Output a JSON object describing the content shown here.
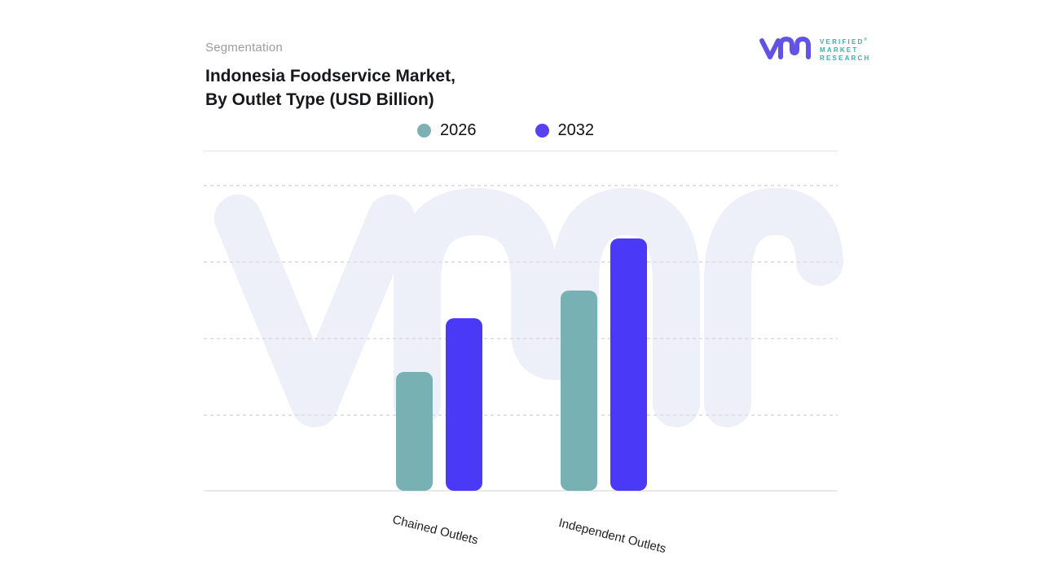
{
  "header": {
    "eyebrow": "Segmentation",
    "title_line1": "Indonesia Foodservice Market,",
    "title_line2": "By Outlet Type (USD Billion)"
  },
  "logo": {
    "name": "Verified Market Research",
    "line1": "VERIFIED",
    "registered": "®",
    "line2": "MARKET",
    "line3": "RESEARCH",
    "mark_color": "#6153e4",
    "text_color": "#35b3aa"
  },
  "legend": [
    {
      "label": "2026",
      "color": "#7db2b4"
    },
    {
      "label": "2032",
      "color": "#5642ee"
    }
  ],
  "chart_data": {
    "type": "bar",
    "title": "Indonesia Foodservice Market, By Outlet Type (USD Billion)",
    "categories": [
      "Chained Outlets",
      "Independent Outlets"
    ],
    "series": [
      {
        "name": "2026",
        "color": "#77b1b3",
        "values": [
          1.55,
          2.62
        ]
      },
      {
        "name": "2032",
        "color": "#4a39f7",
        "values": [
          2.25,
          3.3
        ]
      }
    ],
    "xlabel": "",
    "ylabel": "",
    "ylim": [
      0,
      4
    ],
    "y_axis_labels_visible": false,
    "gridlines": "dashed horizontal",
    "legend_position": "top center"
  },
  "colors": {
    "watermark": "#edeff9",
    "gridline": "#e3e1e5",
    "axis": "#e9e9eb"
  }
}
